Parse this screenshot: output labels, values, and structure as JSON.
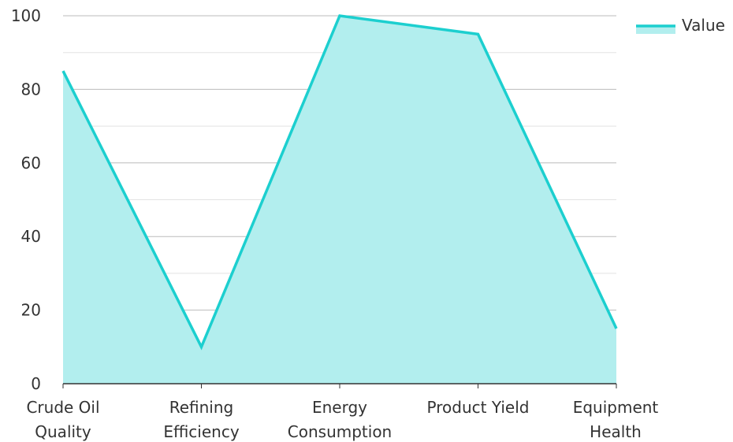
{
  "chart_data": {
    "type": "area",
    "categories": [
      [
        "Crude Oil",
        "Quality"
      ],
      [
        "Refining",
        "Efficiency"
      ],
      [
        "Energy",
        "Consumption"
      ],
      [
        "Product Yield"
      ],
      [
        "Equipment",
        "Health"
      ]
    ],
    "series": [
      {
        "name": "Value",
        "values": [
          85,
          10,
          100,
          95,
          15
        ]
      }
    ],
    "ylim": [
      0,
      100
    ],
    "yticks": [
      "0",
      "20",
      "40",
      "60",
      "80",
      "100"
    ],
    "grid": true,
    "legend": "top-right",
    "colors": {
      "line": "#1ccfcf",
      "fill": "#b2eeee",
      "grid": "#cccccc",
      "axis": "#333333"
    }
  }
}
